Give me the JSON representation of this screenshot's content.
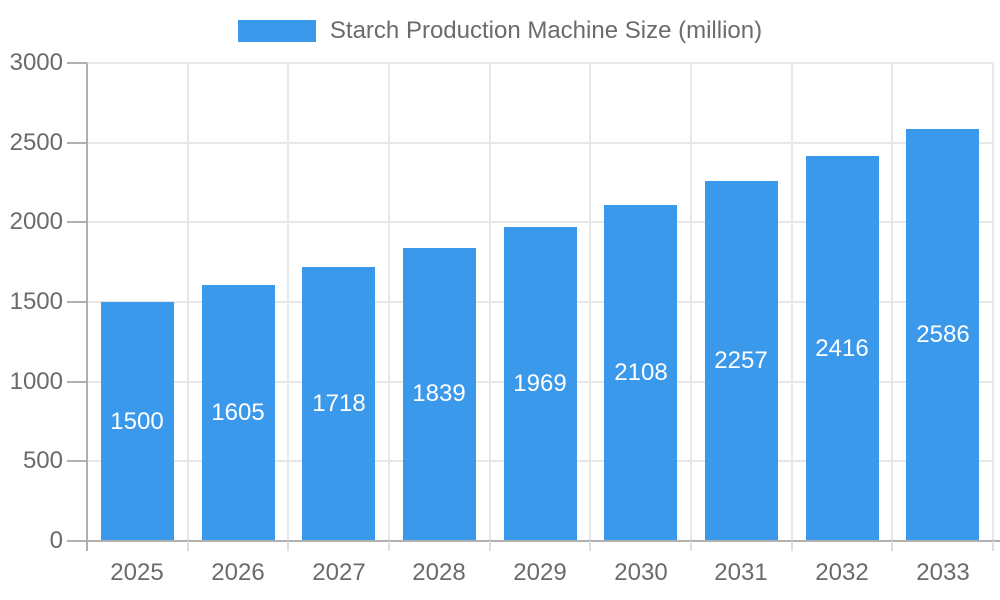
{
  "chart_data": {
    "type": "bar",
    "title": "Starch Production Machine Size (million)",
    "legend": [
      "Starch Production Machine Size (million)"
    ],
    "legend_position": "top-center",
    "categories": [
      "2025",
      "2026",
      "2027",
      "2028",
      "2029",
      "2030",
      "2031",
      "2032",
      "2033"
    ],
    "values": [
      1500,
      1605,
      1718,
      1839,
      1969,
      2108,
      2257,
      2416,
      2586
    ],
    "xlabel": "",
    "ylabel": "",
    "ylim": [
      0,
      3000
    ],
    "yticks": [
      0,
      500,
      1000,
      1500,
      2000,
      2500,
      3000
    ],
    "grid": true,
    "value_label_position": "inside-middle",
    "colors": {
      "bar": "#3B99EC",
      "grid": "#E7E7E7",
      "axis": "#B0B0B0",
      "tick": "#DDDDDD",
      "text": "#6B6B6B",
      "value_text": "#FFFFFF",
      "background": "#FFFFFF"
    }
  }
}
